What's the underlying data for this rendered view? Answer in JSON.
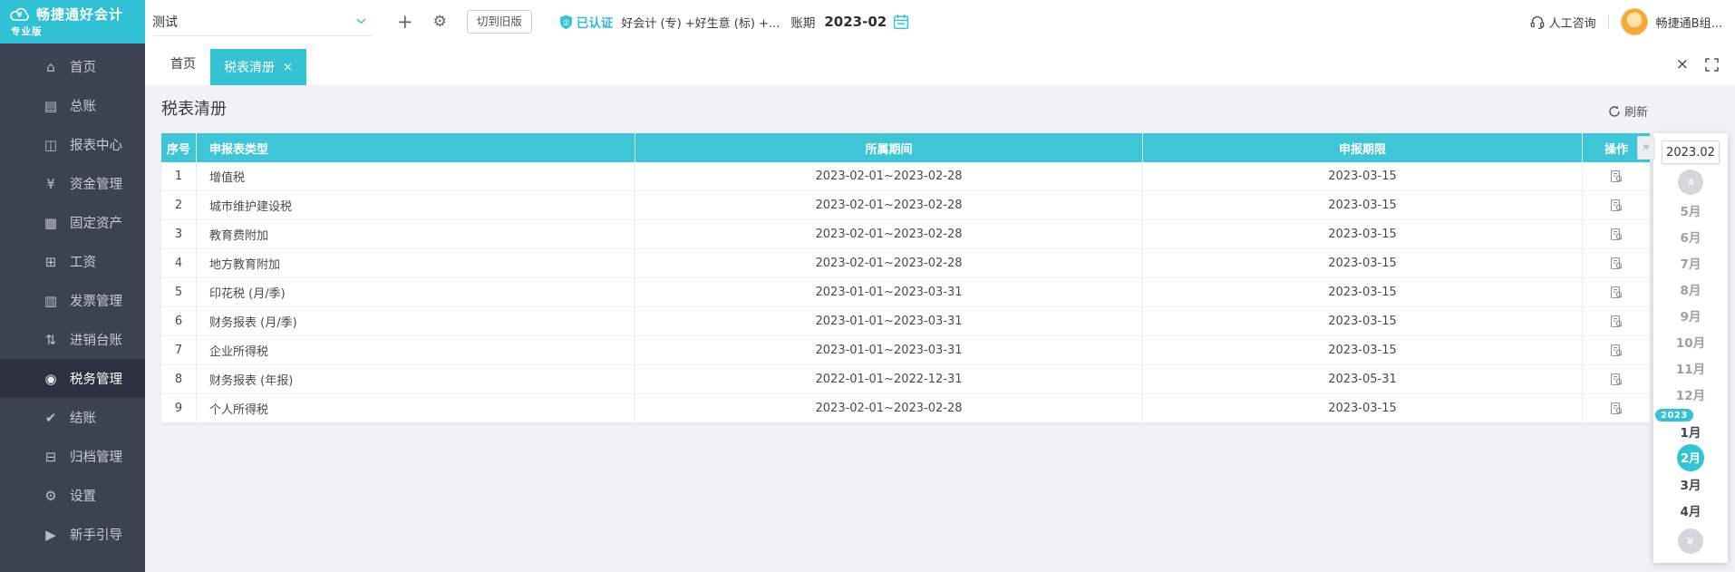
{
  "colors": {
    "accent": "#35c3d4",
    "table_header": "#3fc6d6",
    "sidebar_bg": "#3d4253",
    "sidebar_active_bg": "#2c3040",
    "main_bg": "#f0f2f5",
    "certified_text": "#2bbcd4"
  },
  "brand": {
    "logo_icon": "cloud-yuan-icon",
    "name": "畅捷通好会计",
    "edition": "专业版"
  },
  "topbar": {
    "account": {
      "name": "测试",
      "chevron_icon": "chevron-down-icon"
    },
    "plus_icon": "plus-icon",
    "gear_icon": "gear-icon",
    "switch_old_label": "切到旧版",
    "certified": {
      "icon": "shield-certified-icon",
      "label": "已认证"
    },
    "products": "好会计 (专) +好生意 (标) +...",
    "period": {
      "label": "账期",
      "value": "2023-02",
      "icon": "calendar-icon"
    },
    "support": {
      "icon": "headset-icon",
      "label": "人工咨询"
    },
    "user": {
      "avatar_icon": "avatar",
      "name": "畅捷通B组..."
    }
  },
  "sidebar": {
    "items": [
      {
        "label": "首页",
        "icon": "home-icon",
        "active": false
      },
      {
        "label": "总账",
        "icon": "ledger-icon",
        "active": false
      },
      {
        "label": "报表中心",
        "icon": "report-center-icon",
        "active": false
      },
      {
        "label": "资金管理",
        "icon": "funds-icon",
        "active": false
      },
      {
        "label": "固定资产",
        "icon": "fixed-assets-icon",
        "active": false
      },
      {
        "label": "工资",
        "icon": "salary-icon",
        "active": false
      },
      {
        "label": "发票管理",
        "icon": "invoice-icon",
        "active": false
      },
      {
        "label": "进销台账",
        "icon": "purchase-sales-icon",
        "active": false
      },
      {
        "label": "税务管理",
        "icon": "tax-icon",
        "active": true
      },
      {
        "label": "结账",
        "icon": "closing-icon",
        "active": false
      },
      {
        "label": "归档管理",
        "icon": "archive-icon",
        "active": false
      },
      {
        "label": "设置",
        "icon": "settings-icon",
        "active": false
      },
      {
        "label": "新手引导",
        "icon": "guide-icon",
        "active": false
      }
    ]
  },
  "tabs": {
    "items": [
      {
        "label": "首页",
        "active": false,
        "closable": false
      },
      {
        "label": "税表清册",
        "active": true,
        "closable": true
      }
    ],
    "close_icon": "close-icon",
    "fullscreen_icon": "fullscreen-icon"
  },
  "page": {
    "title": "税表清册",
    "refresh_label": "刷新",
    "refresh_icon": "refresh-icon"
  },
  "table": {
    "columns": [
      "序号",
      "申报表类型",
      "所属期间",
      "申报期限",
      "操作"
    ],
    "action_icon": "view-report-icon",
    "rows": [
      {
        "no": "1",
        "type": "增值税",
        "period": "2023-02-01~2023-02-28",
        "deadline": "2023-03-15"
      },
      {
        "no": "2",
        "type": "城市维护建设税",
        "period": "2023-02-01~2023-02-28",
        "deadline": "2023-03-15"
      },
      {
        "no": "3",
        "type": "教育费附加",
        "period": "2023-02-01~2023-02-28",
        "deadline": "2023-03-15"
      },
      {
        "no": "4",
        "type": "地方教育附加",
        "period": "2023-02-01~2023-02-28",
        "deadline": "2023-03-15"
      },
      {
        "no": "5",
        "type": "印花税 (月/季)",
        "period": "2023-01-01~2023-03-31",
        "deadline": "2023-03-15"
      },
      {
        "no": "6",
        "type": "财务报表 (月/季)",
        "period": "2023-01-01~2023-03-31",
        "deadline": "2023-03-15"
      },
      {
        "no": "7",
        "type": "企业所得税",
        "period": "2023-01-01~2023-03-31",
        "deadline": "2023-03-15"
      },
      {
        "no": "8",
        "type": "财务报表 (年报)",
        "period": "2022-01-01~2022-12-31",
        "deadline": "2023-05-31"
      },
      {
        "no": "9",
        "type": "个人所得税",
        "period": "2023-02-01~2023-02-28",
        "deadline": "2023-03-15"
      }
    ]
  },
  "date_panel": {
    "collapse_icon": "double-chevron-right-icon",
    "current_period": "2023.02",
    "scroll_up_icon": "double-chevron-up-icon",
    "scroll_down_icon": "double-chevron-down-icon",
    "year_badge": {
      "label": "2023",
      "before_index": 8
    },
    "months": [
      {
        "label": "5月",
        "state": "prev"
      },
      {
        "label": "6月",
        "state": "prev"
      },
      {
        "label": "7月",
        "state": "prev"
      },
      {
        "label": "8月",
        "state": "prev"
      },
      {
        "label": "9月",
        "state": "prev"
      },
      {
        "label": "10月",
        "state": "prev"
      },
      {
        "label": "11月",
        "state": "prev"
      },
      {
        "label": "12月",
        "state": "prev"
      },
      {
        "label": "1月",
        "state": "current"
      },
      {
        "label": "2月",
        "state": "selected"
      },
      {
        "label": "3月",
        "state": "current"
      },
      {
        "label": "4月",
        "state": "current"
      }
    ]
  }
}
